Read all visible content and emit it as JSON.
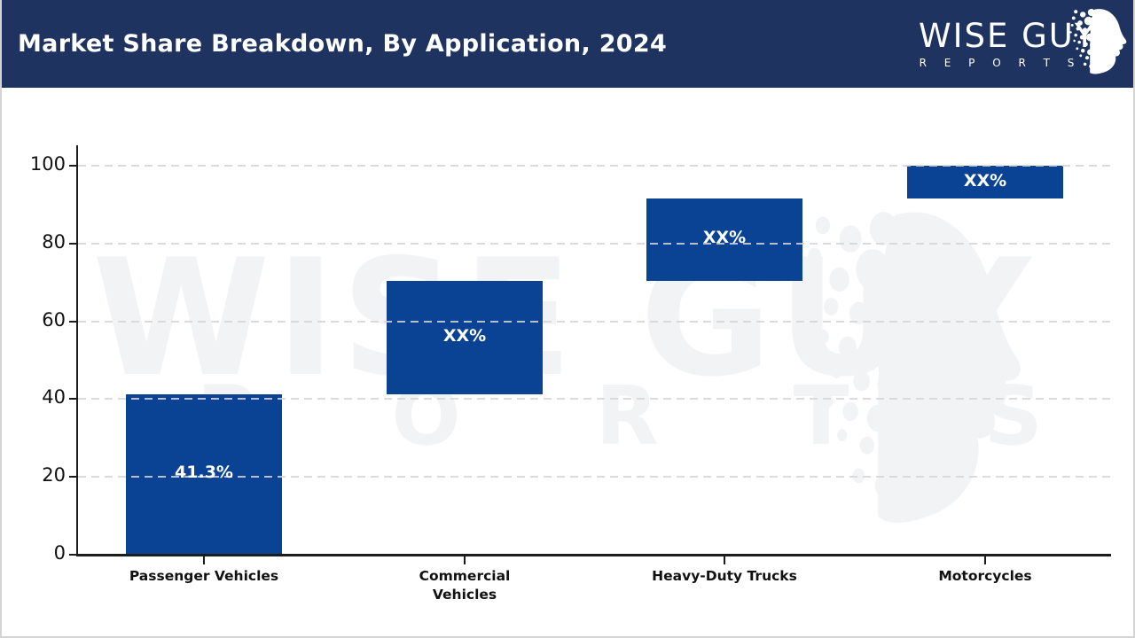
{
  "header": {
    "title": "Market Share Breakdown, By Application, 2024",
    "logo": {
      "line1": "WISE GUY",
      "line2": "R E P O R T S"
    }
  },
  "watermark": {
    "line1": "WISE GUY",
    "line2": "P O R T S"
  },
  "chart_data": {
    "type": "bar",
    "subtype": "waterfall",
    "title": "Market Share Breakdown, By Application, 2024",
    "categories": [
      "Passenger Vehicles",
      "Commercial\nVehicles",
      "Heavy-Duty Trucks",
      "Motorcycles"
    ],
    "segments": [
      {
        "category": "Passenger Vehicles",
        "start": 0,
        "end": 41.3,
        "label": "41.3%"
      },
      {
        "category": "Commercial Vehicles",
        "start": 41.3,
        "end": 70.5,
        "label": "XX%"
      },
      {
        "category": "Heavy-Duty Trucks",
        "start": 70.5,
        "end": 91.5,
        "label": "XX%"
      },
      {
        "category": "Motorcycles",
        "start": 91.5,
        "end": 100,
        "label": "XX%"
      }
    ],
    "ylim": [
      0,
      100
    ],
    "yticks": [
      0,
      20,
      40,
      60,
      80,
      100
    ],
    "grid": "horizontal-dashed",
    "legend": "none",
    "bar_color": "#0a4294",
    "value_label_color": "#ffffff",
    "axis_color": "#1c1c1c",
    "gridline_color": "#d5d5d5"
  },
  "colors": {
    "header_bg": "#1e3360",
    "watermark": "#f2f3f5",
    "page_border": "#d4d4d4"
  }
}
